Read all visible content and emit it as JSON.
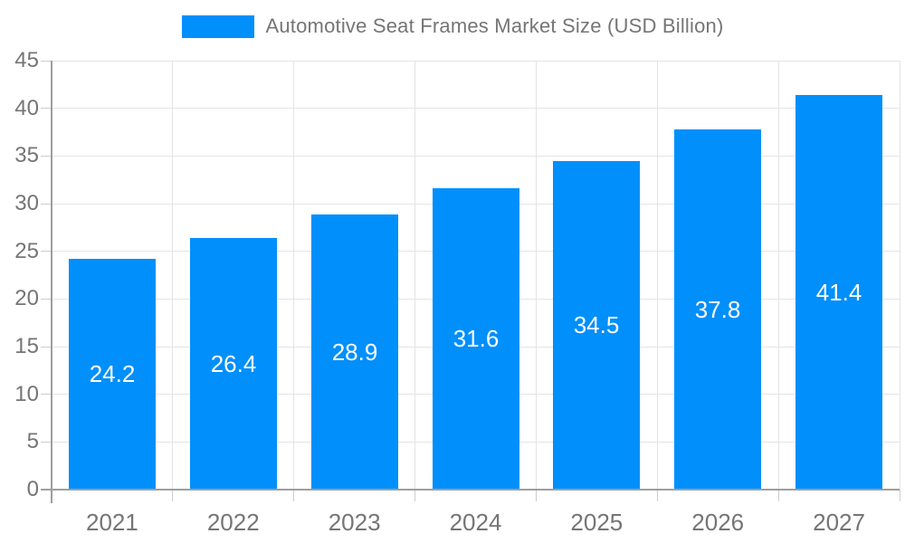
{
  "legend": {
    "label": "Automotive Seat Frames Market Size (USD Billion)"
  },
  "chart_data": {
    "type": "bar",
    "title": "Automotive Seat Frames Market Size (USD Billion)",
    "categories": [
      "2021",
      "2022",
      "2023",
      "2024",
      "2025",
      "2026",
      "2027"
    ],
    "values": [
      24.2,
      26.4,
      28.9,
      31.6,
      34.5,
      37.8,
      41.4
    ],
    "xlabel": "",
    "ylabel": "",
    "ylim": [
      0,
      45
    ],
    "ytick_step": 5,
    "ytick_labels": [
      "0",
      "5",
      "10",
      "15",
      "20",
      "25",
      "30",
      "35",
      "40",
      "45"
    ],
    "grid": true,
    "legend_position": "top",
    "colors": {
      "bar": "#008FFB",
      "bar_value_label": "#ffffff",
      "axis_label": "#757575",
      "gridline": "#e4e4e4",
      "axis_line": "#9e9e9e",
      "tick": "#cccccc"
    }
  }
}
